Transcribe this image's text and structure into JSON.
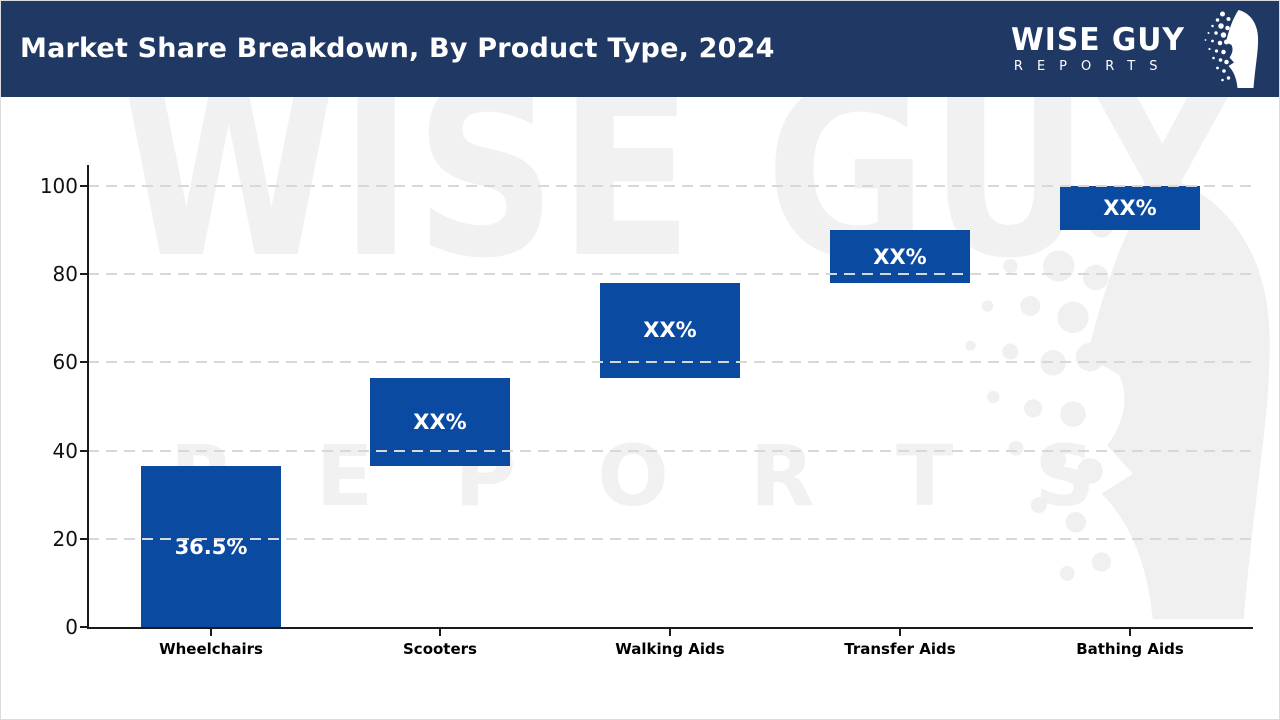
{
  "header": {
    "title": "Market Share Breakdown, By Product Type, 2024",
    "logo": {
      "line1": "WISE GUY",
      "line2": "REPORTS"
    }
  },
  "watermark": {
    "line1": "WISE GUY",
    "line2": "R E P O R T S"
  },
  "chart_data": {
    "type": "bar",
    "subtype": "waterfall",
    "title": "Market Share Breakdown, By Product Type, 2024",
    "categories": [
      "Wheelchairs",
      "Scooters",
      "Walking Aids",
      "Transfer Aids",
      "Bathing Aids"
    ],
    "segments": [
      {
        "category": "Wheelchairs",
        "start": 0,
        "end": 36.5,
        "label": "36.5%"
      },
      {
        "category": "Scooters",
        "start": 36.5,
        "end": 56.5,
        "label": "XX%"
      },
      {
        "category": "Walking Aids",
        "start": 56.5,
        "end": 78,
        "label": "XX%"
      },
      {
        "category": "Transfer Aids",
        "start": 78,
        "end": 90,
        "label": "XX%"
      },
      {
        "category": "Bathing Aids",
        "start": 90,
        "end": 100,
        "label": "XX%"
      }
    ],
    "yticks": [
      0,
      20,
      40,
      60,
      80,
      100
    ],
    "ylim": [
      0,
      105
    ],
    "xlabel": "",
    "ylabel": "",
    "grid": "horizontal-dashed",
    "legend": "none"
  },
  "colors": {
    "header_bg": "#1f3864",
    "bar": "#0a4aa1",
    "grid": "#d8d8d8",
    "axis": "#1a1a1a",
    "watermark": "#f1f1f1",
    "bar_label": "#ffffff"
  }
}
